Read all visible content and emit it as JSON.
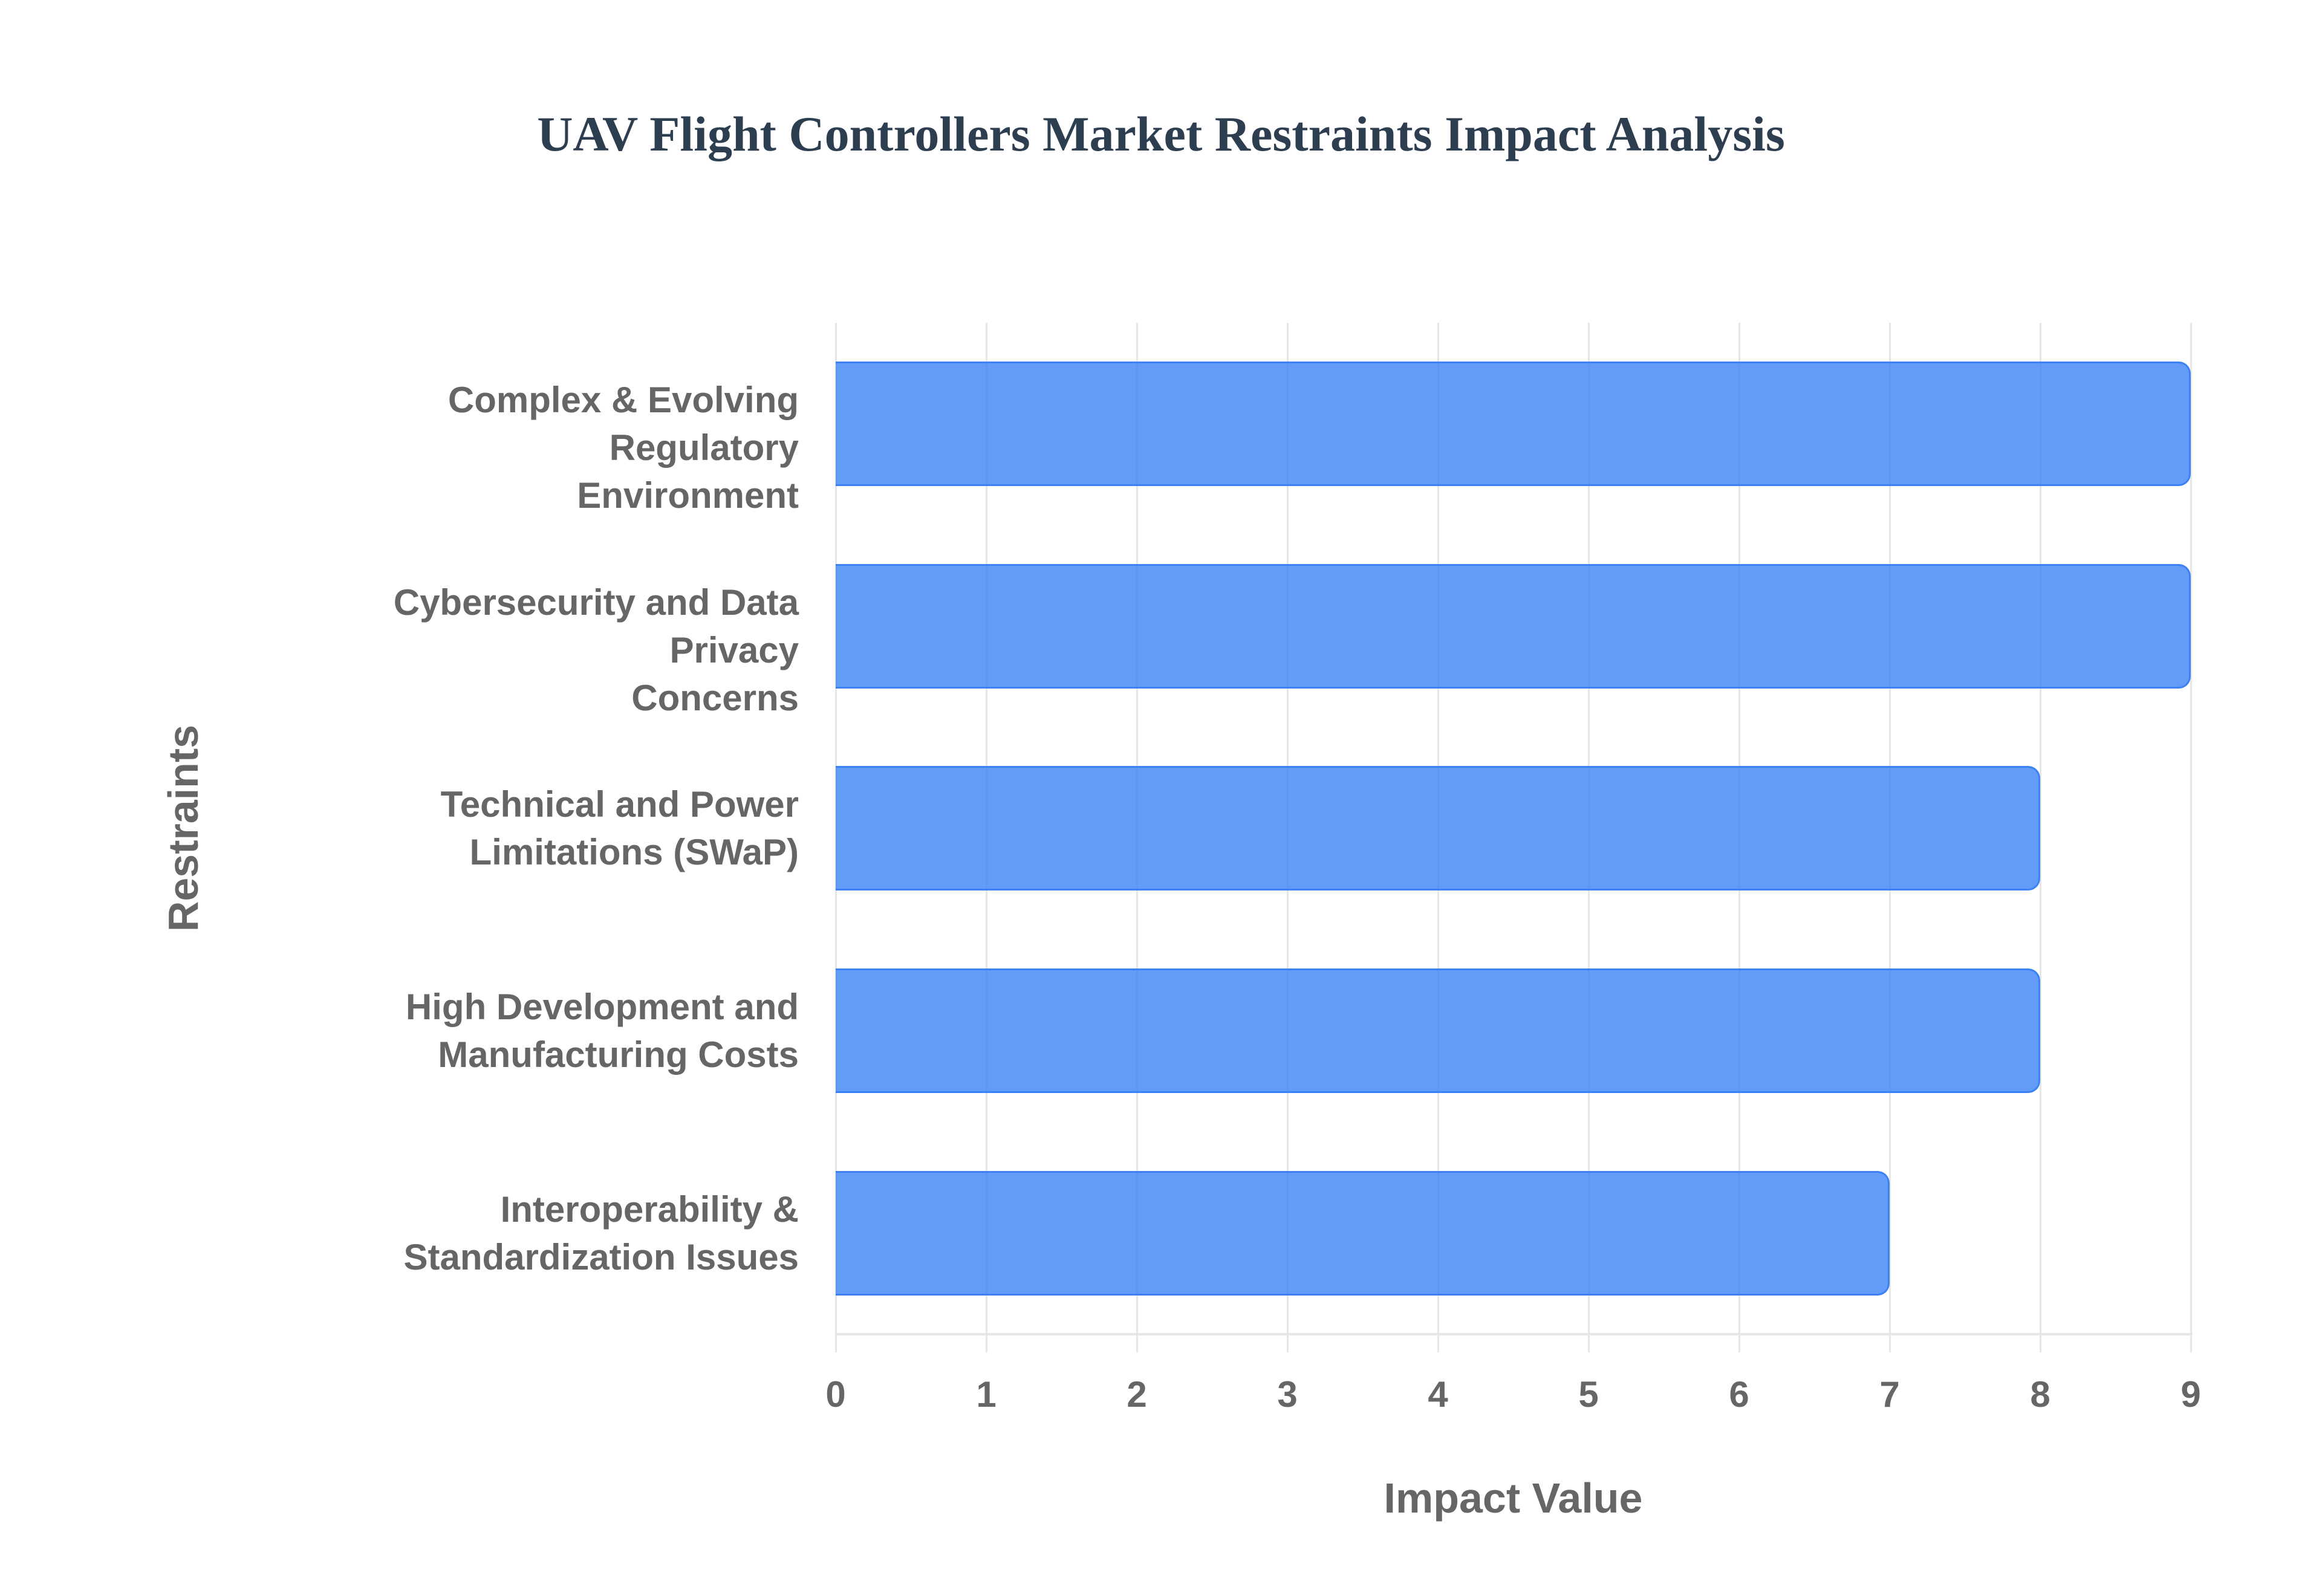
{
  "chart": {
    "title": "UAV Flight Controllers Market Restraints Impact Analysis",
    "xlabel": "Impact Value",
    "ylabel": "Restraints",
    "bar_color": "#3b82f6",
    "ticks": [
      "0",
      "1",
      "2",
      "3",
      "4",
      "5",
      "6",
      "7",
      "8",
      "9"
    ],
    "labels": [
      [
        "Complex & Evolving Regulatory",
        "Environment"
      ],
      [
        "Cybersecurity and Data Privacy",
        "Concerns"
      ],
      [
        "Technical and Power",
        "Limitations (SWaP)"
      ],
      [
        "High Development and",
        "Manufacturing Costs"
      ],
      [
        "Interoperability &",
        "Standardization Issues"
      ]
    ]
  },
  "chart_data": {
    "type": "bar",
    "orientation": "horizontal",
    "title": "UAV Flight Controllers Market Restraints Impact Analysis",
    "xlabel": "Impact Value",
    "ylabel": "Restraints",
    "categories": [
      "Complex & Evolving Regulatory Environment",
      "Cybersecurity and Data Privacy Concerns",
      "Technical and Power Limitations (SWaP)",
      "High Development and Manufacturing Costs",
      "Interoperability & Standardization Issues"
    ],
    "values": [
      9,
      9,
      8,
      8,
      7
    ],
    "xlim": [
      0,
      9
    ],
    "xticks": [
      0,
      1,
      2,
      3,
      4,
      5,
      6,
      7,
      8,
      9
    ],
    "grid": true,
    "legend": null,
    "color": "#3b82f6"
  }
}
